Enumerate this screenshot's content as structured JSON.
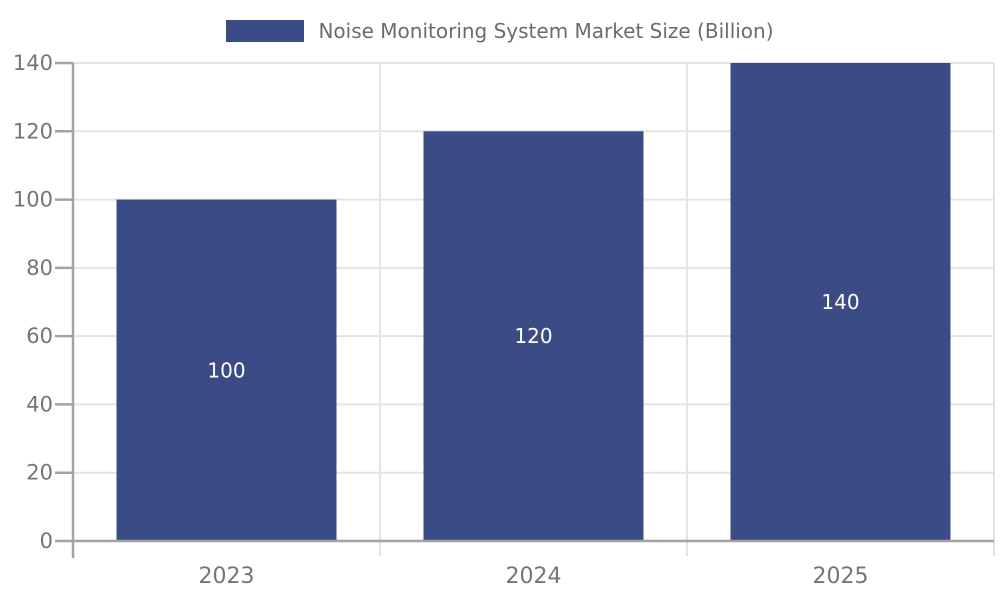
{
  "chart_data": {
    "type": "bar",
    "title": "Noise Monitoring System Market Size (Billion)",
    "categories": [
      "2023",
      "2024",
      "2025"
    ],
    "values": [
      100,
      120,
      140
    ],
    "bar_labels": [
      "100",
      "120",
      "140"
    ],
    "xlabel": "",
    "ylabel": "",
    "ylim": [
      0,
      140
    ],
    "yticks": [
      0,
      20,
      40,
      60,
      80,
      100,
      120,
      140
    ],
    "grid": true,
    "legend_position": "top-center",
    "colors": {
      "bar": "#3a4b85",
      "grid": "#e4e4e4",
      "axis": "#a3a3a3",
      "tick_label": "#757575",
      "legend_text": "#6b6b6b",
      "value_label": "#ffffff",
      "background": "#ffffff"
    }
  }
}
